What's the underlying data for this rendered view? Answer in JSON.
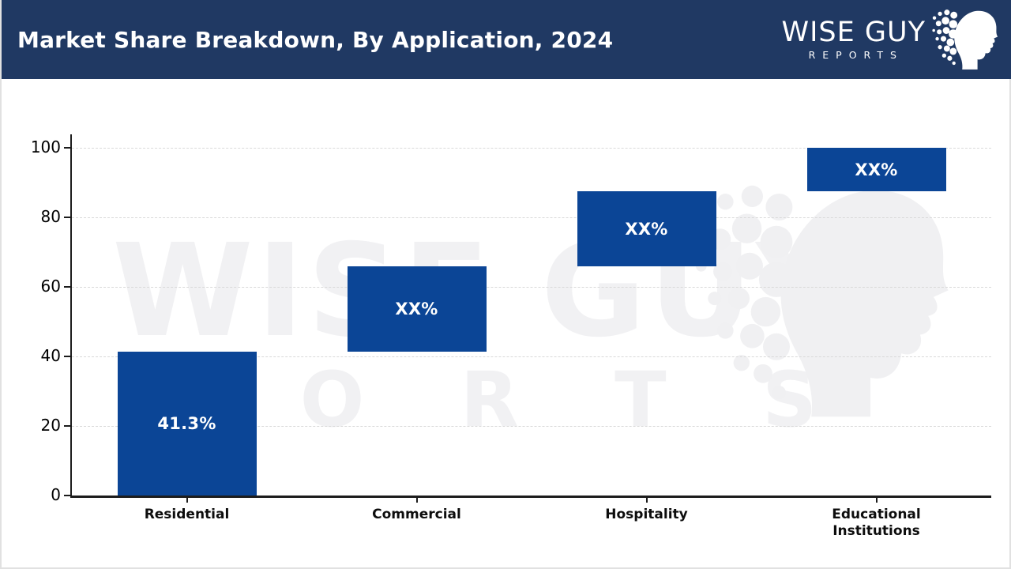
{
  "header": {
    "title": "Market Share Breakdown, By Application, 2024",
    "bg_color": "#203963",
    "logo": {
      "line1": "WISE GUY",
      "line2": "REPORTS"
    }
  },
  "watermark": {
    "line1": "WISE GUY",
    "line2": "P O R T S"
  },
  "chart_data": {
    "type": "bar",
    "subtype": "waterfall-segments",
    "title": "Market Share Breakdown, By Application, 2024",
    "xlabel": "",
    "ylabel": "",
    "ylim": [
      0,
      100
    ],
    "yticks": [
      0,
      20,
      40,
      60,
      80,
      100
    ],
    "grid": "horizontal-dashed",
    "legend": "none",
    "bar_color": "#0b4596",
    "categories": [
      "Residential",
      "Commercial",
      "Hospitality",
      "Educational Institutions"
    ],
    "segments": [
      {
        "category": "Residential",
        "start": 0,
        "end": 41.3,
        "label": "41.3%"
      },
      {
        "category": "Commercial",
        "start": 41.3,
        "end": 65.9,
        "label": "XX%"
      },
      {
        "category": "Hospitality",
        "start": 65.9,
        "end": 87.5,
        "label": "XX%"
      },
      {
        "category": "Educational Institutions",
        "start": 87.5,
        "end": 100,
        "label": "XX%"
      }
    ]
  }
}
